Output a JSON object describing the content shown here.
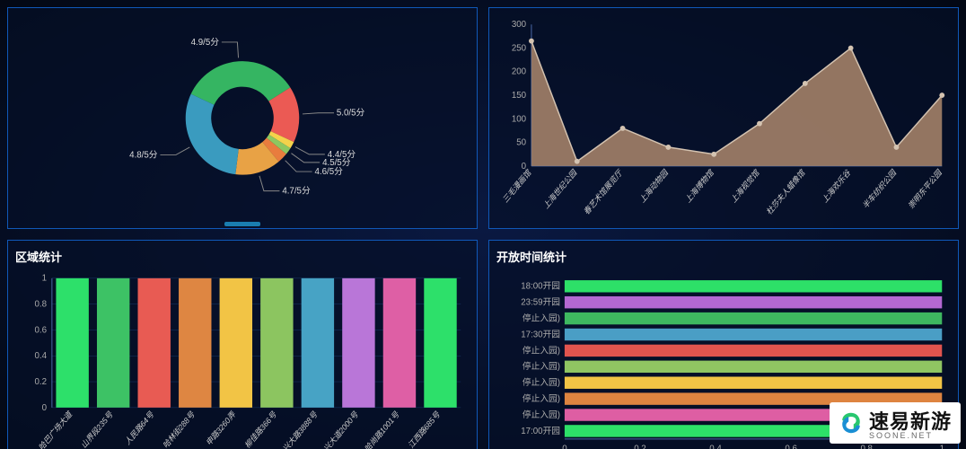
{
  "panels": {
    "donut": {
      "type": "donut",
      "title": "",
      "background": "#05112e",
      "label_color": "#dddddd",
      "label_fontsize": 10,
      "inner_radius": 0.55,
      "slices": [
        {
          "label": "4.9/5分",
          "value": 34,
          "color": "#35b562"
        },
        {
          "label": "5.0/5分",
          "value": 16,
          "color": "#eb5a54"
        },
        {
          "label": "4.4/5分",
          "value": 2,
          "color": "#f4d24b"
        },
        {
          "label": "4.5/5分",
          "value": 2,
          "color": "#8dc760"
        },
        {
          "label": "4.6/5分",
          "value": 3,
          "color": "#e87c3e"
        },
        {
          "label": "4.7/5分",
          "value": 13,
          "color": "#e8a245"
        },
        {
          "label": "4.8/5分",
          "value": 30,
          "color": "#3a9bbf"
        }
      ]
    },
    "area": {
      "type": "area",
      "title": "",
      "categories": [
        "三毛漫画馆",
        "上海世纪公园",
        "春艺术馆展览厅",
        "上海动物园",
        "上海博物馆",
        "上海视觉馆",
        "杜莎夫人蜡像馆",
        "上海欢乐谷",
        "半车纺织公园",
        "崇明东平公园"
      ],
      "values": [
        265,
        10,
        80,
        40,
        25,
        90,
        175,
        250,
        40,
        150
      ],
      "series_color": "#a38168",
      "fill_opacity": 0.9,
      "point_color": "#d4c3b1",
      "ylim": [
        0,
        300
      ],
      "ytick_step": 50,
      "axis_color": "#4b6aa8",
      "label_color": "#cccccc",
      "label_fontsize": 9
    },
    "bars": {
      "type": "bar",
      "title": "区域统计",
      "categories": [
        "哈巴广场大道",
        "山界段235号",
        "人民路64号",
        "哈林街288号",
        "申路3260弄",
        "柳佳路366号",
        "兴大路3888号",
        "兴大道2000号",
        "哈尚路1001号",
        "江西路685号"
      ],
      "values": [
        1,
        1,
        1,
        1,
        1,
        1,
        1,
        1,
        1,
        1
      ],
      "bar_colors": [
        "#2de06a",
        "#3dc265",
        "#e85b53",
        "#de8642",
        "#f2c445",
        "#8cc560",
        "#47a3c5",
        "#b976d8",
        "#de5fa5",
        "#2de06a"
      ],
      "ylim": [
        0,
        1
      ],
      "ytick_step": 0.2,
      "bar_width": 0.8,
      "axis_color": "#4b6aa8",
      "label_color": "#cccccc",
      "label_fontsize": 10
    },
    "hbars": {
      "type": "hbar",
      "title": "开放时间统计",
      "categories": [
        "18:00开园",
        "23:59开园",
        "停止入园)",
        "17:30开园",
        "停止入园)",
        "停止入园)",
        "停止入园)",
        "停止入园)",
        "停止入园)",
        "17:00开园"
      ],
      "values": [
        1,
        1,
        1,
        1,
        1,
        1,
        1,
        1,
        1,
        1
      ],
      "bar_colors": [
        "#2de068",
        "#b468d2",
        "#3eb860",
        "#4a9ec5",
        "#e1544e",
        "#90c562",
        "#f2c445",
        "#de8440",
        "#de5ea3",
        "#2de068"
      ],
      "xlim": [
        0,
        1
      ],
      "xtick_step": 0.2,
      "bar_height": 0.75,
      "axis_color": "#4b6aa8",
      "label_color": "#cccccc",
      "label_fontsize": 10
    }
  },
  "watermark": {
    "text": "速易新游",
    "sub": "SOONE.NET"
  }
}
